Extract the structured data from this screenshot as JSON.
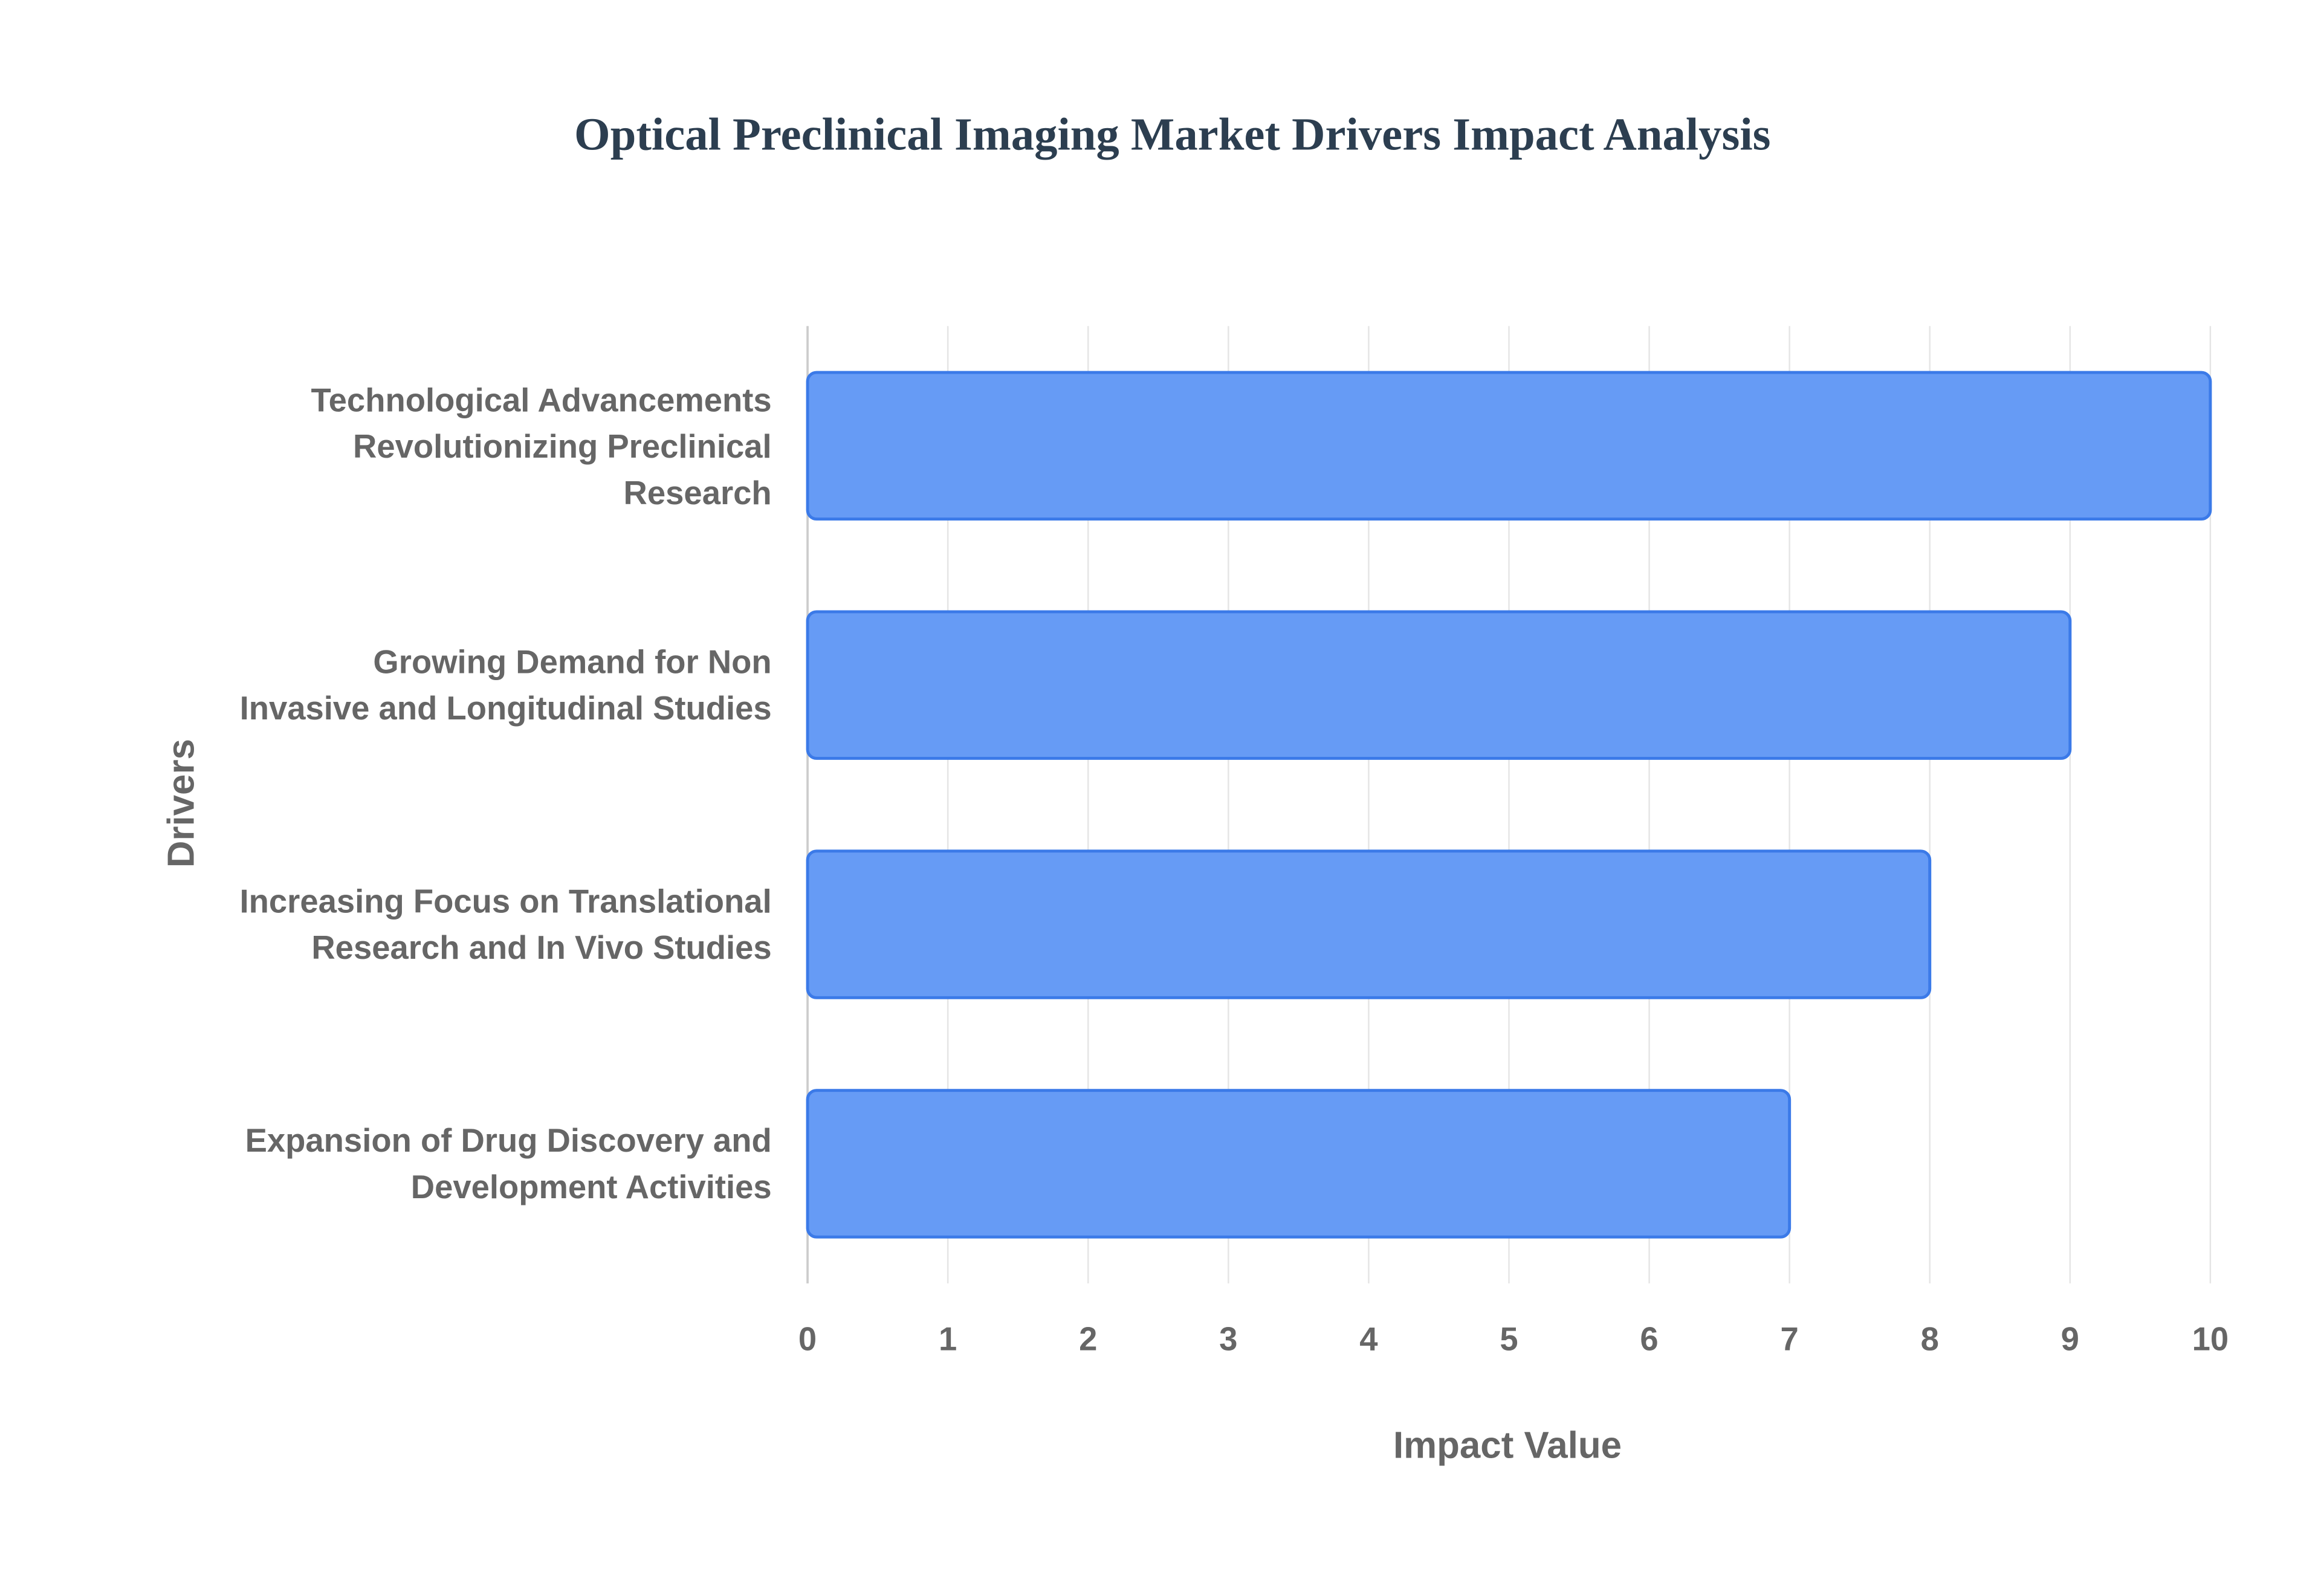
{
  "chart_data": {
    "type": "hbar",
    "title": "Optical Preclinical Imaging Market Drivers Impact Analysis",
    "xlabel": "Impact Value",
    "ylabel": "Drivers",
    "categories": [
      "Technological Advancements Revolutionizing Preclinical Research",
      "Growing Demand for Non Invasive and Longitudinal Studies",
      "Increasing Focus on Translational Research and In Vivo Studies",
      "Expansion of Drug Discovery and Development Activities"
    ],
    "values": [
      10,
      9,
      8,
      7
    ],
    "color": "#6399f5",
    "xlim": [
      0,
      10
    ],
    "xticks": [
      0,
      1,
      2,
      3,
      4,
      5,
      6,
      7,
      8,
      9,
      10
    ],
    "grid": true
  }
}
